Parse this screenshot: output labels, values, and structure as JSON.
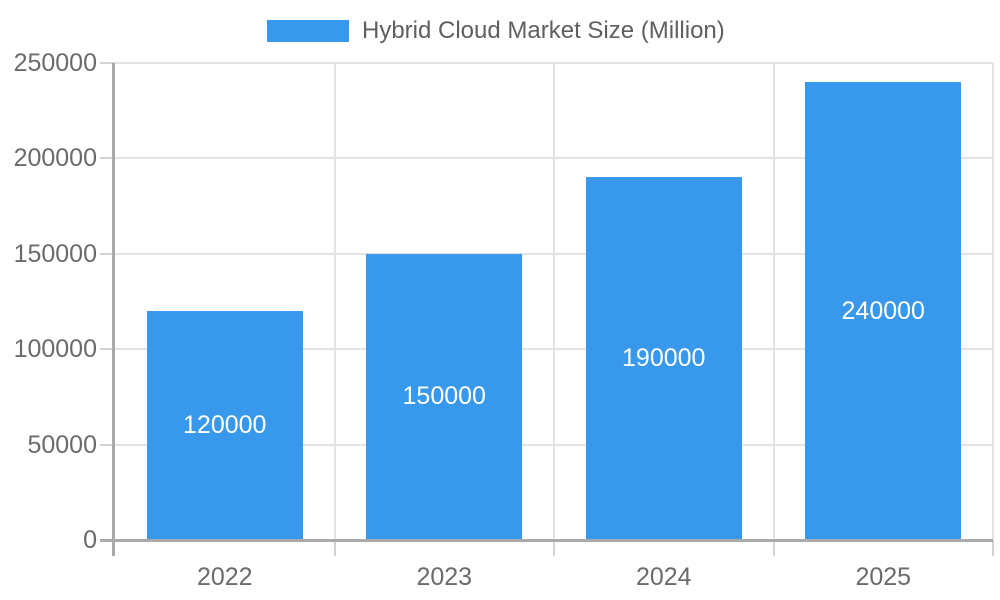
{
  "chart_data": {
    "type": "bar",
    "title": "Hybrid Cloud Market Size (Million)",
    "categories": [
      "2022",
      "2023",
      "2024",
      "2025"
    ],
    "values": [
      120000,
      150000,
      190000,
      240000
    ],
    "series": [
      {
        "name": "Hybrid Cloud Market Size (Million)",
        "values": [
          120000,
          150000,
          190000,
          240000
        ]
      }
    ],
    "xlabel": "",
    "ylabel": "",
    "ylim": [
      0,
      250000
    ],
    "yticks": [
      0,
      50000,
      100000,
      150000,
      200000,
      250000
    ],
    "grid": true,
    "legend_position": "top-center",
    "bar_label_position": "inside-center",
    "series_color": "#3899ec"
  },
  "colors": {
    "background": "#ffffff",
    "grid_line": "#e3e3e3",
    "tick_mark": "#d2d2d2",
    "axis_line": "#aaaaaa",
    "axis_text": "#6b6b6b",
    "legend_text": "#5f5f5f",
    "bar_value_text": "#ffffff"
  }
}
